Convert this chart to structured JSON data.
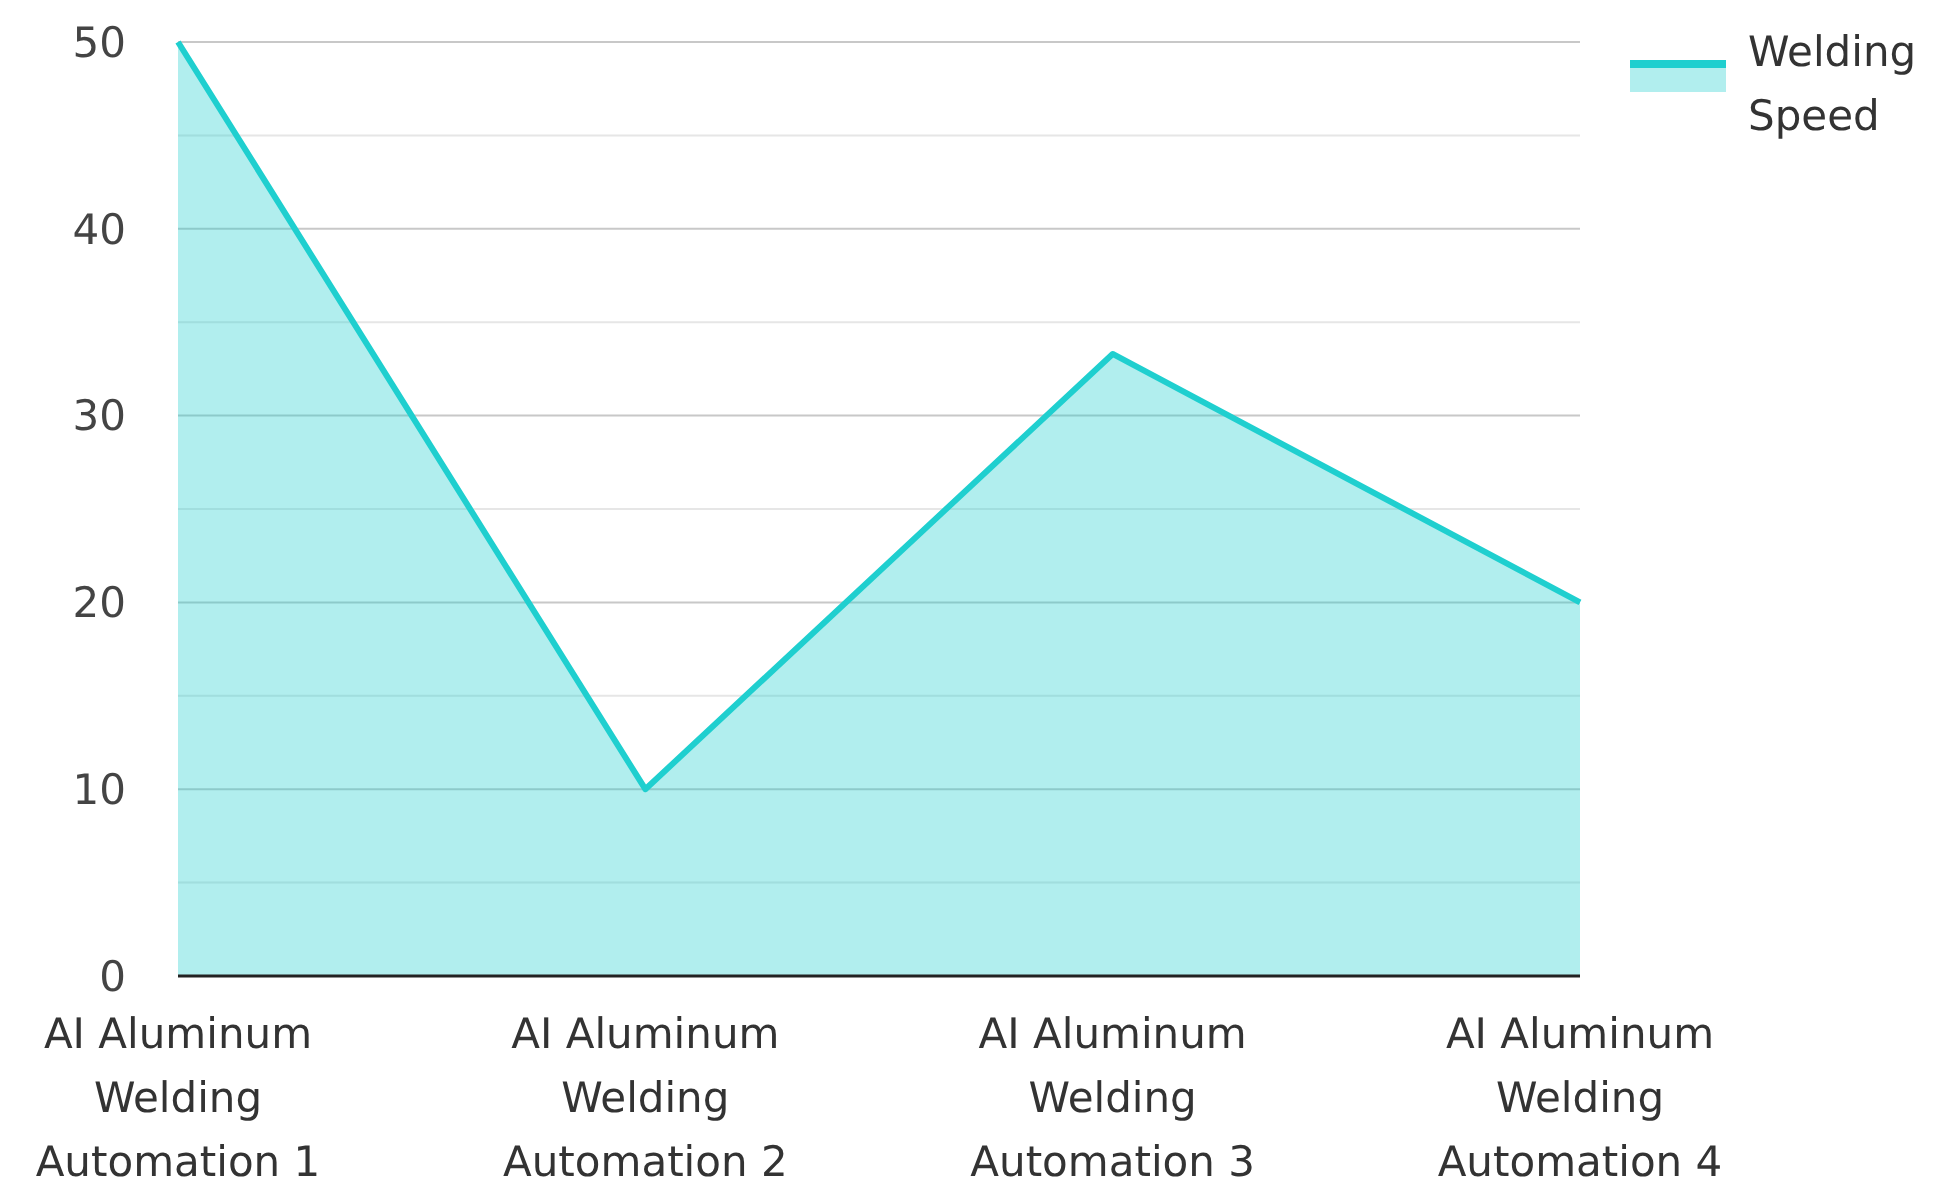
{
  "chart_data": {
    "type": "area",
    "categories": [
      "AI Aluminum Welding Automation 1",
      "AI Aluminum Welding Automation 2",
      "AI Aluminum Welding Automation 3",
      "AI Aluminum Welding Automation 4"
    ],
    "series": [
      {
        "name": "Welding Speed",
        "color": "#1fcfcf",
        "values": [
          50,
          10,
          33.3,
          20
        ]
      }
    ],
    "ylim": [
      0,
      50
    ],
    "yticks": [
      0,
      {
        "value": 5,
        "label": null
      },
      10,
      {
        "value": 15,
        "label": null
      },
      20,
      {
        "value": 25,
        "label": null
      },
      30,
      {
        "value": 35,
        "label": null
      },
      40,
      {
        "value": 45,
        "label": null
      },
      50
    ],
    "grid": "y",
    "legend": "top right"
  }
}
